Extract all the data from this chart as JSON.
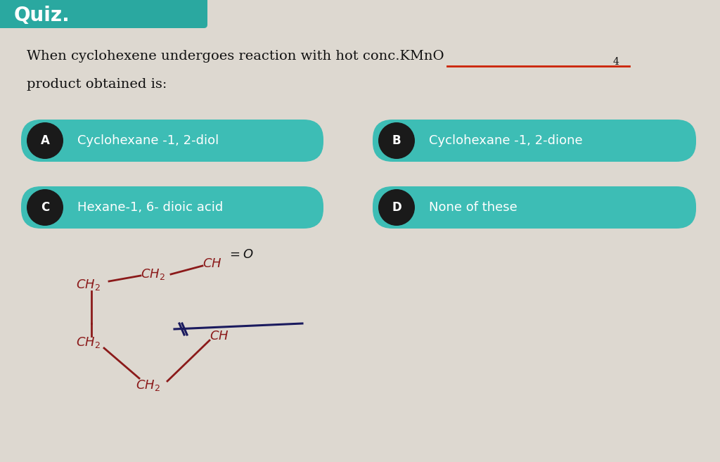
{
  "background_color": "#ddd8d0",
  "header_color": "#2aa8a0",
  "header_text": "Quiz.",
  "question_line1": "When cyclohexene undergoes reaction with hot conc.KMnO",
  "question_subscript": "4",
  "question_line2": "product obtained is:",
  "options": [
    {
      "label": "A",
      "text": "Cyclohexane -1, 2-diol"
    },
    {
      "label": "B",
      "text": "Cyclohexane -1, 2-dione"
    },
    {
      "label": "C",
      "text": "Hexane-1, 6- dioic acid"
    },
    {
      "label": "D",
      "text": "None of these"
    }
  ],
  "option_bg_color": "#3dbdb5",
  "option_label_bg": "#1a1a1a",
  "option_text_color": "#ffffff",
  "option_label_color": "#ffffff",
  "underline_color": "#cc2200",
  "fig_width": 10.24,
  "fig_height": 6.57,
  "struct_red": "#8b1a1a",
  "struct_blue": "#1a1a5e"
}
